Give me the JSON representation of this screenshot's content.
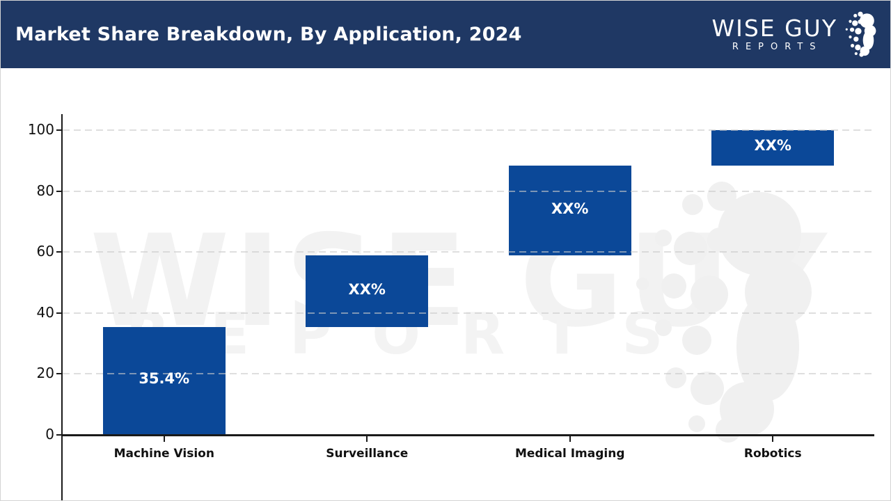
{
  "header": {
    "title": "Market Share Breakdown, By Application, 2024",
    "background_color": "#1f3864",
    "logo": {
      "line1": "WISE GUY",
      "line2": "REPORTS",
      "head_icon": "dotted-head-profile-icon"
    }
  },
  "watermark": {
    "line1": "WISE GUY",
    "line2": "REPORTS",
    "head_icon": "dotted-head-profile-icon"
  },
  "chart_data": {
    "type": "bar",
    "subtype": "waterfall",
    "title": "Market Share Breakdown, By Application, 2024",
    "categories": [
      "Machine Vision",
      "Surveillance",
      "Medical Imaging",
      "Robotics"
    ],
    "segments": [
      {
        "category": "Machine Vision",
        "start": 0,
        "end": 35.4,
        "label": "35.4%"
      },
      {
        "category": "Surveillance",
        "start": 35.4,
        "end": 58.8,
        "label": "XX%"
      },
      {
        "category": "Medical Imaging",
        "start": 58.8,
        "end": 88.4,
        "label": "XX%"
      },
      {
        "category": "Robotics",
        "start": 88.4,
        "end": 100,
        "label": "XX%"
      }
    ],
    "xlabel": "",
    "ylabel": "",
    "ylim": [
      0,
      100
    ],
    "yticks": [
      0,
      20,
      40,
      60,
      80,
      100
    ],
    "grid": "horizontal-dashed",
    "legend": "none",
    "bar_color": "#0b4898",
    "bar_label_color": "#ffffff",
    "axis_color": "#1a1a1a",
    "gridline_color": "#c9c9c9"
  }
}
